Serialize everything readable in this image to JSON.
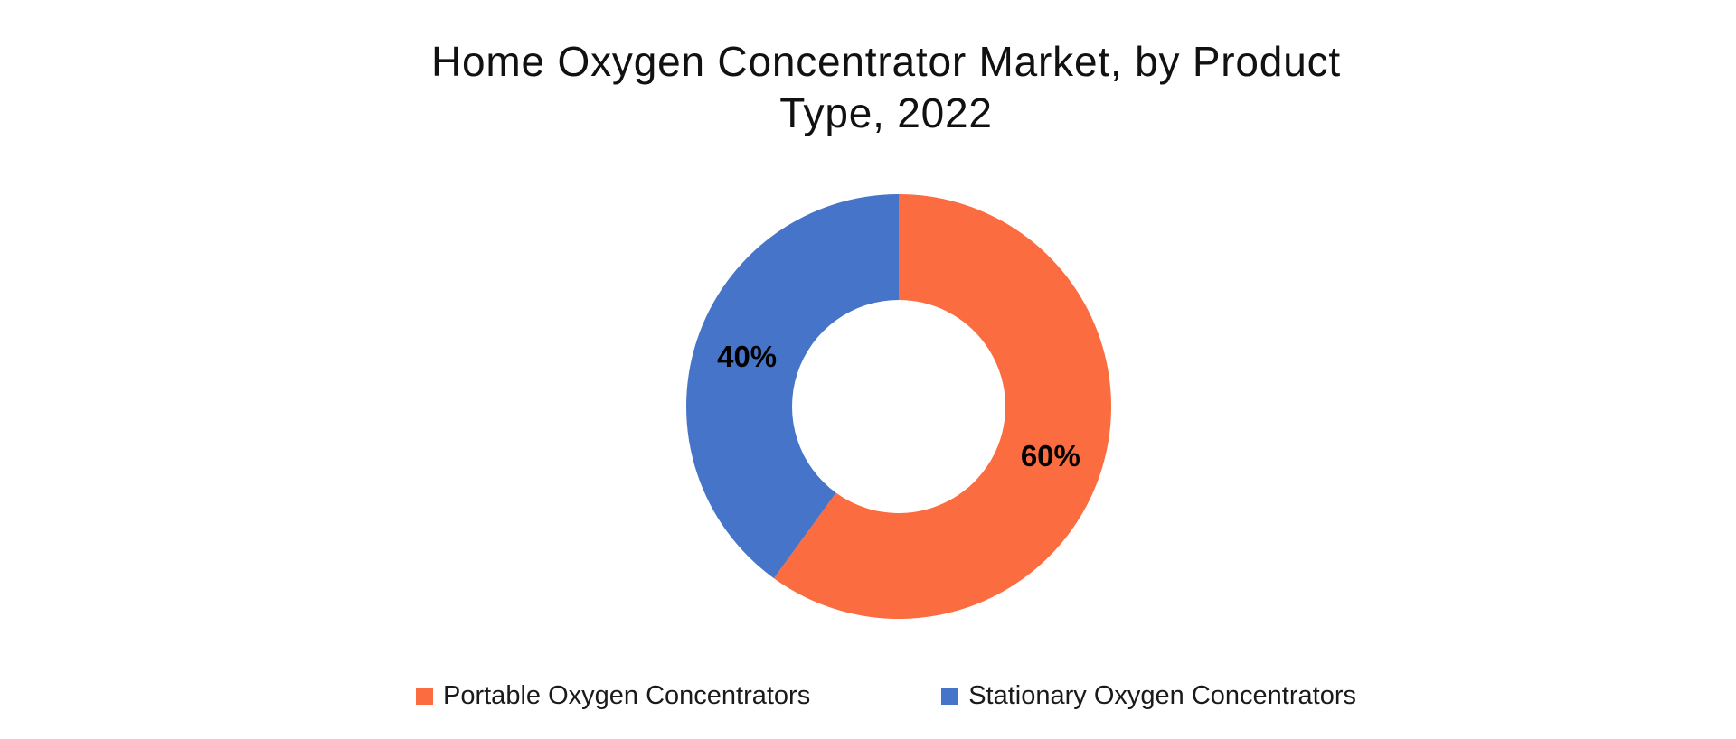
{
  "title": {
    "full": "Home Oxygen Concentrator Market, by Product Type, 2022",
    "lines": [
      "Home Oxygen Concentrator Market, by Product",
      "Type, 2022"
    ]
  },
  "chart_data": {
    "type": "pie",
    "subtype": "donut",
    "title": "Home Oxygen Concentrator Market, by Product Type, 2022",
    "categories": [
      "Portable Oxygen Concentrators",
      "Stationary Oxygen Concentrators"
    ],
    "values": [
      60,
      40
    ],
    "slices": [
      {
        "label": "Portable Oxygen Concentrators",
        "value": 60,
        "display_label": "60%",
        "color": "#FB6C40"
      },
      {
        "label": "Stationary Oxygen Concentrators",
        "value": 40,
        "display_label": "40%",
        "color": "#4674C8"
      }
    ],
    "start_angle_deg": 0,
    "direction": "clockwise",
    "inner_radius_ratio": 0.5,
    "legend_position": "bottom",
    "data_labels": "percent",
    "data_label_color": "#000000",
    "background_color": "#FFFFFF"
  }
}
